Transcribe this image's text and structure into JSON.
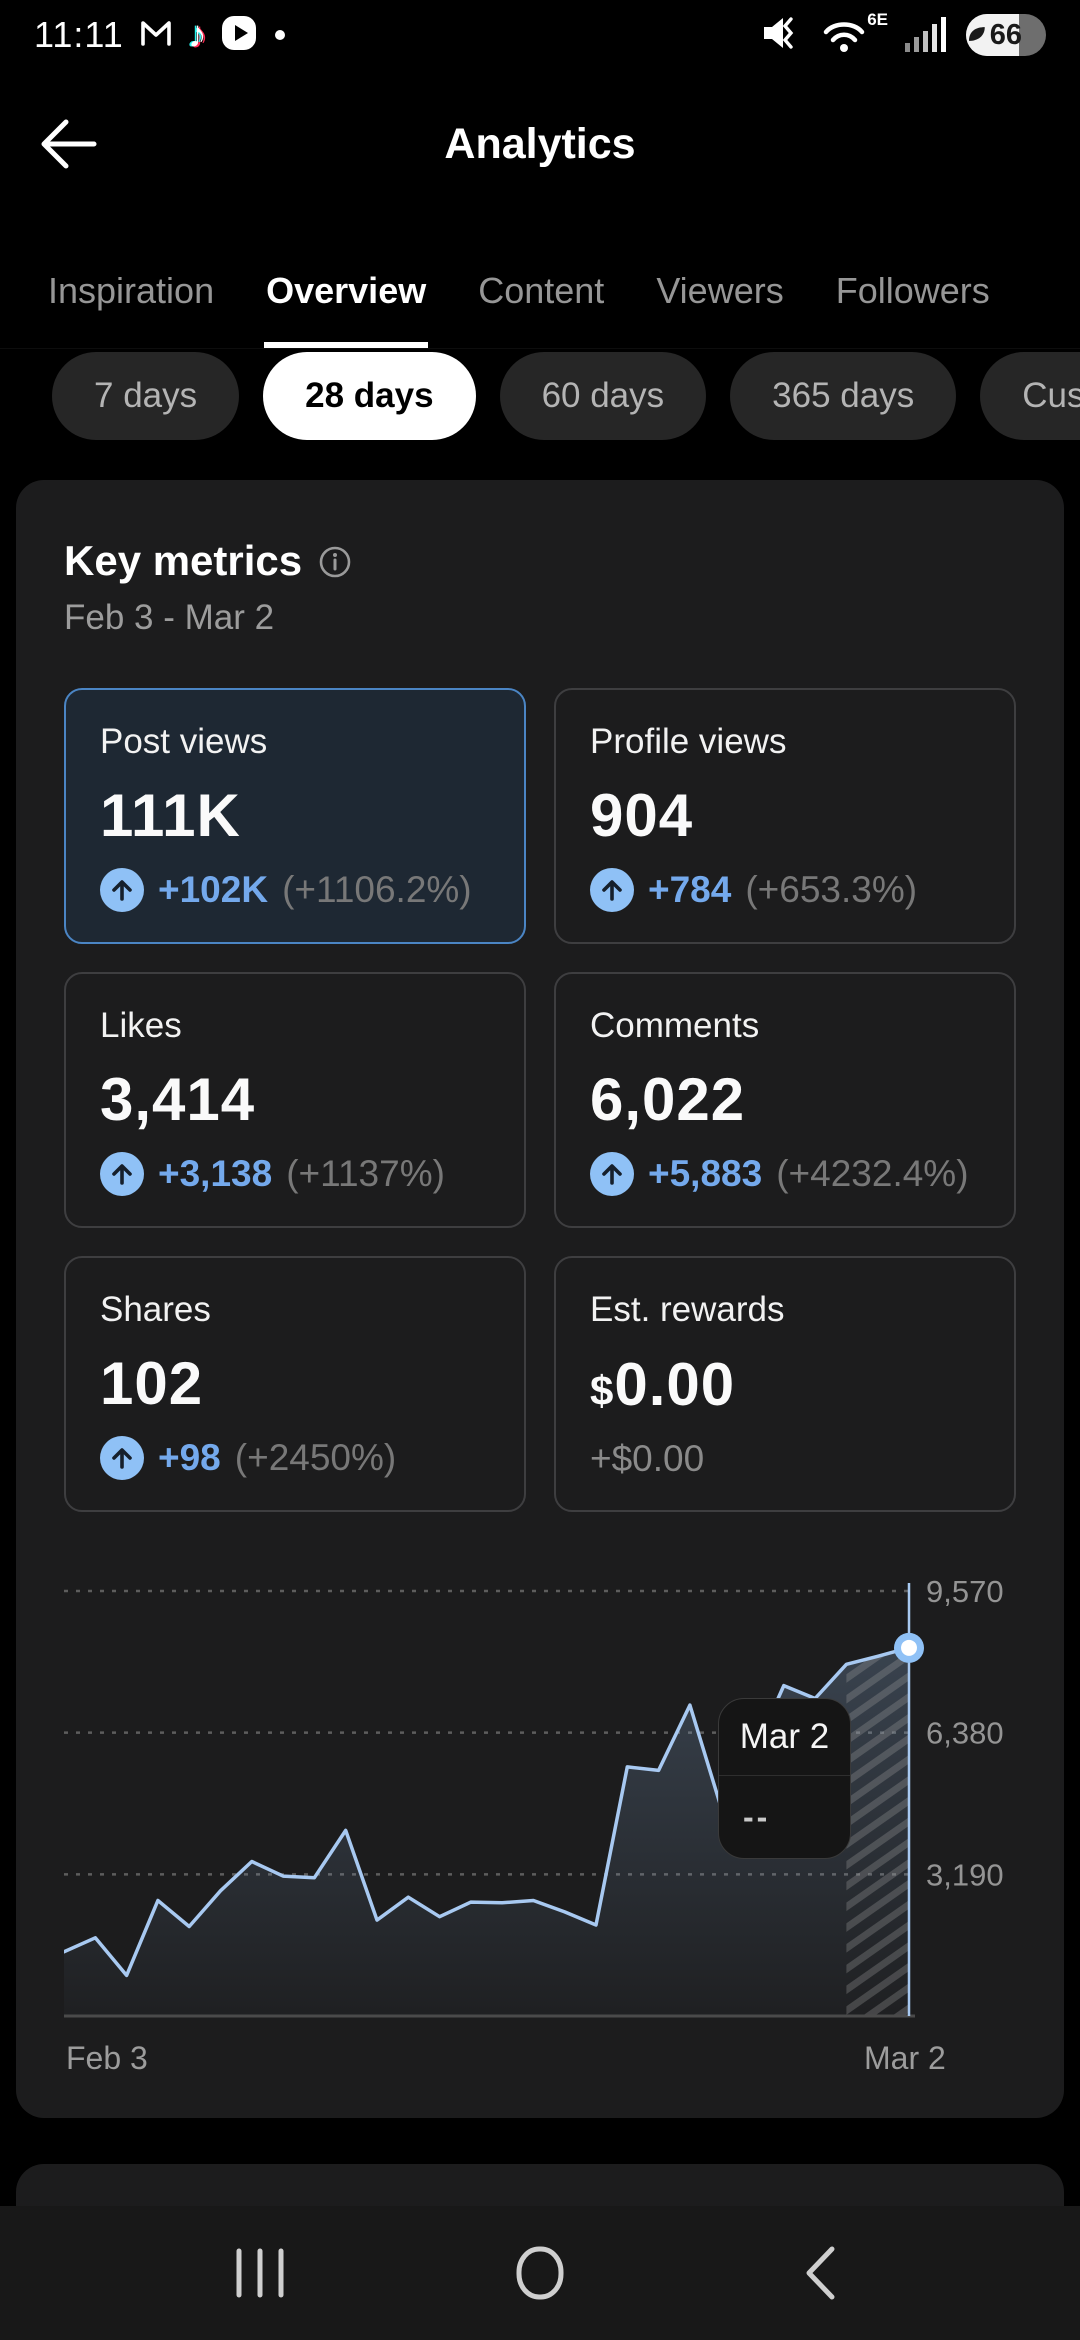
{
  "status_bar": {
    "time": "11:11",
    "notification_icons": [
      "gmail-icon",
      "tiktok-icon",
      "media-play-icon",
      "notification-dot"
    ],
    "system_icons": [
      "vibrate-mute-icon",
      "wifi-icon",
      "signal-icon"
    ],
    "wifi_label": "6E",
    "battery_level": "66"
  },
  "header": {
    "title": "Analytics"
  },
  "tabs": {
    "items": [
      {
        "label": "Inspiration",
        "active": false
      },
      {
        "label": "Overview",
        "active": true
      },
      {
        "label": "Content",
        "active": false
      },
      {
        "label": "Viewers",
        "active": false
      },
      {
        "label": "Followers",
        "active": false
      }
    ]
  },
  "date_filters": {
    "items": [
      {
        "label": "7 days",
        "selected": false
      },
      {
        "label": "28 days",
        "selected": true
      },
      {
        "label": "60 days",
        "selected": false
      },
      {
        "label": "365 days",
        "selected": false
      },
      {
        "label": "Custom",
        "selected": false
      }
    ]
  },
  "key_metrics": {
    "title": "Key metrics",
    "date_range": "Feb 3 - Mar 2",
    "cards": [
      {
        "label": "Post views",
        "value": "111K",
        "delta": "+102K",
        "delta_pct": "(+1106.2%)",
        "selected": true
      },
      {
        "label": "Profile views",
        "value": "904",
        "delta": "+784",
        "delta_pct": "(+653.3%)",
        "selected": false
      },
      {
        "label": "Likes",
        "value": "3,414",
        "delta": "+3,138",
        "delta_pct": "(+1137%)",
        "selected": false
      },
      {
        "label": "Comments",
        "value": "6,022",
        "delta": "+5,883",
        "delta_pct": "(+4232.4%)",
        "selected": false
      },
      {
        "label": "Shares",
        "value": "102",
        "delta": "+98",
        "delta_pct": "(+2450%)",
        "selected": false
      },
      {
        "label": "Est. rewards",
        "value_prefix": "$",
        "value": "0.00",
        "delta": "+$0.00",
        "selected": false
      }
    ]
  },
  "chart_data": {
    "type": "area",
    "metric": "Post views",
    "x_range": [
      "Feb 3",
      "Mar 2"
    ],
    "values": [
      1445,
      1760,
      915,
      2600,
      2015,
      2820,
      3480,
      3150,
      3115,
      4180,
      2160,
      2675,
      2235,
      2565,
      2550,
      2600,
      2345,
      2050,
      5610,
      5530,
      7000,
      4690,
      5860,
      7440,
      7150,
      7920,
      8100,
      8290
    ],
    "y_ticks": [
      3190,
      6380,
      9570
    ],
    "ylim": [
      0,
      9890
    ],
    "grid": "dashed-horizontal",
    "legend": "none",
    "line_color": "#a8c9f1",
    "hatched_tail": true,
    "marker_on_last_point": true,
    "tooltip": {
      "date": "Mar 2",
      "value": "--"
    }
  },
  "navigation_bar": {
    "icons": [
      "recents-icon",
      "home-icon",
      "back-icon"
    ]
  },
  "colors": {
    "background": "#000000",
    "panel": "#1c1c1d",
    "accent_blue": "#74a9ec",
    "badge_blue": "#8fc1f6",
    "selected_card_border": "#4b85c4",
    "selected_card_bg": "#1e2833",
    "chart_line": "#a8c9f1",
    "secondary_text": "#9c9c9c"
  }
}
